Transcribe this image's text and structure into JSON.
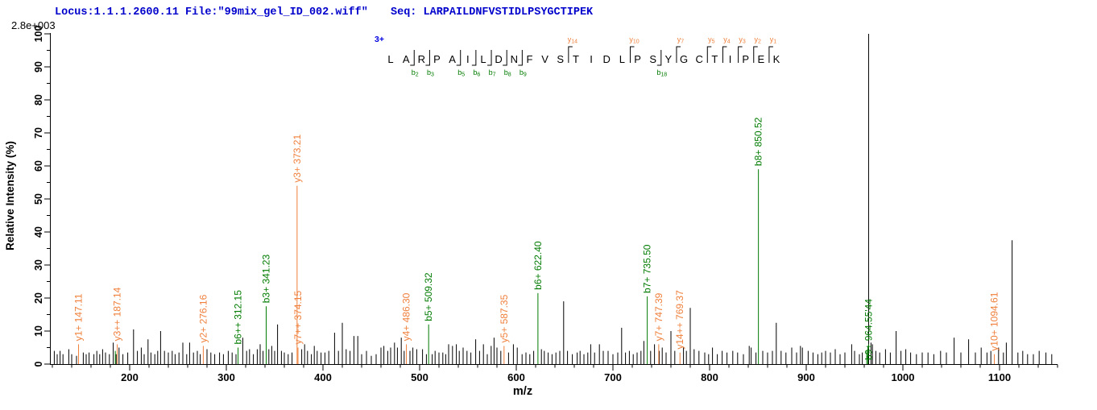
{
  "header": {
    "locus_file": "Locus:1.1.1.2600.11 File:\"99mix_gel_ID_002.wiff\"",
    "seq_label": "Seq: LARPAILDNFVSTIDLPSYGCTIPEK",
    "base_peak_intensity": "2.8e+003"
  },
  "colors": {
    "header_blue": "#0000CC",
    "b_ion_green": "#007B00",
    "y_ion_orange": "#EF7F3A",
    "peak_black": "#000000",
    "axis_black": "#000000",
    "background": "#FFFFFF"
  },
  "chart_data": {
    "type": "bar",
    "subtype": "ms2-stick-spectrum",
    "xlabel": "m/z",
    "ylabel": "Relative  Intensity (%)",
    "xlim": [
      117.5,
      1160
    ],
    "ylim": [
      0,
      100
    ],
    "x_major_tick_start": 200,
    "x_major_tick_end": 1100,
    "x_major_step": 100,
    "x_minor_step": 20,
    "y_major_step": 10,
    "y_minor_step": 5,
    "grid": "off",
    "precursor_charge": "3+",
    "sequence": "LARPAILDNFVSTIDLPSYGCTIPEK",
    "b_marks": [
      {
        "pos": 2,
        "label": "b2"
      },
      {
        "pos": 3,
        "label": "b3"
      },
      {
        "pos": 5,
        "label": "b5"
      },
      {
        "pos": 6,
        "label": "b6"
      },
      {
        "pos": 7,
        "label": "b7"
      },
      {
        "pos": 8,
        "label": "b8"
      },
      {
        "pos": 9,
        "label": "b9"
      },
      {
        "pos": 18,
        "label": "b18"
      }
    ],
    "y_marks": [
      {
        "pos": 12,
        "label": "y14"
      },
      {
        "pos": 16,
        "label": "y10"
      },
      {
        "pos": 19,
        "label": "y7"
      },
      {
        "pos": 21,
        "label": "y5"
      },
      {
        "pos": 22,
        "label": "y4"
      },
      {
        "pos": 23,
        "label": "y3"
      },
      {
        "pos": 24,
        "label": "y2"
      },
      {
        "pos": 25,
        "label": "y1"
      }
    ],
    "annotated_peaks": [
      {
        "mz": 147.11,
        "pct": 6,
        "series": "y",
        "label": "y1+ 147.11"
      },
      {
        "mz": 187.14,
        "pct": 6,
        "series": "y",
        "label": "y3++ 187.14"
      },
      {
        "mz": 276.16,
        "pct": 5.5,
        "series": "y",
        "label": "y2+ 276.16"
      },
      {
        "mz": 312.15,
        "pct": 5,
        "series": "b",
        "label": "b6++ 312.15"
      },
      {
        "mz": 341.23,
        "pct": 17.5,
        "series": "b",
        "label": "b3+ 341.23"
      },
      {
        "mz": 373.21,
        "pct": 54,
        "series": "y",
        "label": "y3+ 373.21"
      },
      {
        "mz": 374.15,
        "pct": 5,
        "series": "y",
        "label": "y7++ 374.15"
      },
      {
        "mz": 486.3,
        "pct": 6,
        "series": "y",
        "label": "y4+ 486.30"
      },
      {
        "mz": 509.32,
        "pct": 12,
        "series": "b",
        "label": "b5+ 509.32"
      },
      {
        "mz": 587.35,
        "pct": 5.5,
        "series": "y",
        "label": "y5+ 587.35"
      },
      {
        "mz": 622.4,
        "pct": 21.5,
        "series": "b",
        "label": "b6+ 622.40"
      },
      {
        "mz": 735.5,
        "pct": 20.5,
        "series": "b",
        "label": "b7+ 735.50"
      },
      {
        "mz": 747.39,
        "pct": 6,
        "series": "y",
        "label": "y7+ 747.39"
      },
      {
        "mz": 769.37,
        "pct": 3.5,
        "series": "y",
        "label": "y14++ 769.37"
      },
      {
        "mz": 850.52,
        "pct": 59,
        "series": "b",
        "label": "b8+ 850.52"
      },
      {
        "mz": 964.55,
        "pct": 100,
        "series": "b",
        "label": "b9+ 964.55'44",
        "line_black": true,
        "label_at_base": true
      },
      {
        "mz": 1094.61,
        "pct": 3,
        "series": "y",
        "label": "y10+ 1094.61"
      }
    ],
    "matched_unlabeled_peaks": [
      {
        "mz": 185.13,
        "pct": 4,
        "series": "b"
      },
      {
        "mz": 962.6,
        "pct": 4,
        "series": "b"
      },
      {
        "mz": 963.8,
        "pct": 5.5,
        "series": "b"
      }
    ],
    "background_peaks": [
      [
        122,
        4
      ],
      [
        125,
        3
      ],
      [
        128,
        4
      ],
      [
        131,
        3
      ],
      [
        137,
        4.5
      ],
      [
        140,
        3
      ],
      [
        145,
        2.5
      ],
      [
        152,
        3.5
      ],
      [
        155,
        3
      ],
      [
        158,
        3.5
      ],
      [
        163,
        3
      ],
      [
        166,
        4
      ],
      [
        169,
        3
      ],
      [
        172,
        4.5
      ],
      [
        175,
        3.5
      ],
      [
        179,
        3
      ],
      [
        183,
        6.5
      ],
      [
        186,
        3
      ],
      [
        189,
        5
      ],
      [
        193,
        3
      ],
      [
        198,
        3.5
      ],
      [
        204,
        10.5
      ],
      [
        208,
        4
      ],
      [
        212,
        5
      ],
      [
        215,
        3
      ],
      [
        219,
        7.5
      ],
      [
        222,
        3.5
      ],
      [
        226,
        3
      ],
      [
        229,
        4
      ],
      [
        232,
        10
      ],
      [
        236,
        4
      ],
      [
        240,
        3.5
      ],
      [
        244,
        4
      ],
      [
        247,
        3
      ],
      [
        251,
        3.5
      ],
      [
        255,
        6.5
      ],
      [
        259,
        3
      ],
      [
        262,
        6.5
      ],
      [
        266,
        3.5
      ],
      [
        270,
        4
      ],
      [
        273,
        3
      ],
      [
        280,
        4.5
      ],
      [
        284,
        3.5
      ],
      [
        288,
        3
      ],
      [
        293,
        3.5
      ],
      [
        297,
        3
      ],
      [
        302,
        4
      ],
      [
        306,
        3.5
      ],
      [
        310,
        3
      ],
      [
        317,
        8
      ],
      [
        321,
        4
      ],
      [
        324,
        4.5
      ],
      [
        328,
        3
      ],
      [
        332,
        4.5
      ],
      [
        335,
        6
      ],
      [
        338,
        4
      ],
      [
        344,
        4.5
      ],
      [
        347,
        5.5
      ],
      [
        350,
        4
      ],
      [
        353,
        12
      ],
      [
        357,
        4
      ],
      [
        360,
        3.5
      ],
      [
        364,
        3
      ],
      [
        368,
        3.5
      ],
      [
        378,
        4.5
      ],
      [
        381,
        6
      ],
      [
        384,
        4
      ],
      [
        388,
        3
      ],
      [
        391,
        5.5
      ],
      [
        394,
        4
      ],
      [
        398,
        3.5
      ],
      [
        402,
        3.5
      ],
      [
        406,
        4
      ],
      [
        412,
        9.5
      ],
      [
        416,
        4
      ],
      [
        420,
        12.5
      ],
      [
        424,
        4.5
      ],
      [
        428,
        4
      ],
      [
        432,
        8.5
      ],
      [
        436,
        8.5
      ],
      [
        440,
        3
      ],
      [
        445,
        4
      ],
      [
        450,
        2.5
      ],
      [
        455,
        3
      ],
      [
        460,
        5
      ],
      [
        463,
        5.5
      ],
      [
        467,
        4
      ],
      [
        470,
        5
      ],
      [
        474,
        6.5
      ],
      [
        477,
        5
      ],
      [
        481,
        8
      ],
      [
        484,
        4
      ],
      [
        490,
        4
      ],
      [
        493,
        5
      ],
      [
        497,
        4.5
      ],
      [
        503,
        4.5
      ],
      [
        507,
        3
      ],
      [
        513,
        3
      ],
      [
        516,
        4
      ],
      [
        520,
        3.5
      ],
      [
        524,
        3.5
      ],
      [
        527,
        3
      ],
      [
        530,
        6
      ],
      [
        534,
        5.5
      ],
      [
        538,
        6
      ],
      [
        541,
        4
      ],
      [
        545,
        5
      ],
      [
        549,
        4
      ],
      [
        553,
        3.5
      ],
      [
        558,
        7.5
      ],
      [
        562,
        4
      ],
      [
        566,
        6
      ],
      [
        570,
        3
      ],
      [
        574,
        5.5
      ],
      [
        577,
        8
      ],
      [
        580,
        5
      ],
      [
        584,
        4
      ],
      [
        592,
        3.5
      ],
      [
        597,
        6
      ],
      [
        601,
        5
      ],
      [
        606,
        3
      ],
      [
        610,
        3.5
      ],
      [
        614,
        3
      ],
      [
        618,
        4
      ],
      [
        626,
        4.5
      ],
      [
        629,
        4
      ],
      [
        633,
        3.5
      ],
      [
        637,
        3
      ],
      [
        641,
        3.5
      ],
      [
        645,
        4
      ],
      [
        649,
        19
      ],
      [
        653,
        4
      ],
      [
        658,
        3
      ],
      [
        663,
        3.5
      ],
      [
        666,
        4
      ],
      [
        670,
        3
      ],
      [
        674,
        3.5
      ],
      [
        677,
        6
      ],
      [
        681,
        3.5
      ],
      [
        686,
        6
      ],
      [
        690,
        4
      ],
      [
        695,
        4
      ],
      [
        700,
        3
      ],
      [
        705,
        3.5
      ],
      [
        709,
        11
      ],
      [
        713,
        3.5
      ],
      [
        717,
        4
      ],
      [
        721,
        3
      ],
      [
        725,
        3.5
      ],
      [
        729,
        4
      ],
      [
        732,
        7
      ],
      [
        739,
        4
      ],
      [
        743,
        6
      ],
      [
        748,
        4
      ],
      [
        751,
        5
      ],
      [
        755,
        3.5
      ],
      [
        760,
        10
      ],
      [
        764,
        4
      ],
      [
        773,
        5
      ],
      [
        776,
        4
      ],
      [
        780,
        17
      ],
      [
        784,
        4.5
      ],
      [
        789,
        4
      ],
      [
        795,
        3.5
      ],
      [
        799,
        3
      ],
      [
        803,
        5
      ],
      [
        808,
        3
      ],
      [
        813,
        4
      ],
      [
        818,
        3.5
      ],
      [
        824,
        4
      ],
      [
        829,
        3.5
      ],
      [
        835,
        3
      ],
      [
        841,
        5.5
      ],
      [
        843,
        5
      ],
      [
        848,
        3.5
      ],
      [
        855,
        4
      ],
      [
        860,
        3.5
      ],
      [
        865,
        4
      ],
      [
        869,
        12.5
      ],
      [
        874,
        4
      ],
      [
        879,
        3.5
      ],
      [
        885,
        5
      ],
      [
        890,
        3.5
      ],
      [
        894,
        5.5
      ],
      [
        896,
        5
      ],
      [
        902,
        4
      ],
      [
        907,
        3.5
      ],
      [
        912,
        3
      ],
      [
        916,
        3.5
      ],
      [
        920,
        4
      ],
      [
        925,
        3.5
      ],
      [
        930,
        4.5
      ],
      [
        935,
        3
      ],
      [
        940,
        3.5
      ],
      [
        947,
        6
      ],
      [
        950,
        4
      ],
      [
        955,
        3
      ],
      [
        958,
        3.5
      ],
      [
        967,
        6.5
      ],
      [
        968.5,
        6
      ],
      [
        972,
        4
      ],
      [
        976,
        3.5
      ],
      [
        982,
        4.5
      ],
      [
        987,
        3.5
      ],
      [
        993,
        10
      ],
      [
        998,
        4
      ],
      [
        1003,
        4.5
      ],
      [
        1008,
        3.5
      ],
      [
        1014,
        3
      ],
      [
        1020,
        3.5
      ],
      [
        1026,
        3.5
      ],
      [
        1032,
        3
      ],
      [
        1039,
        4
      ],
      [
        1045,
        3.5
      ],
      [
        1053,
        8
      ],
      [
        1060,
        3.5
      ],
      [
        1068,
        7.5
      ],
      [
        1075,
        3.5
      ],
      [
        1081,
        5
      ],
      [
        1087,
        3.5
      ],
      [
        1091,
        4
      ],
      [
        1099,
        5
      ],
      [
        1104,
        3.5
      ],
      [
        1107,
        6.5
      ],
      [
        1113,
        37.5
      ],
      [
        1119,
        3.5
      ],
      [
        1124,
        4
      ],
      [
        1129,
        3
      ],
      [
        1135,
        3
      ],
      [
        1141,
        4
      ],
      [
        1148,
        3.5
      ],
      [
        1154,
        3
      ]
    ]
  }
}
